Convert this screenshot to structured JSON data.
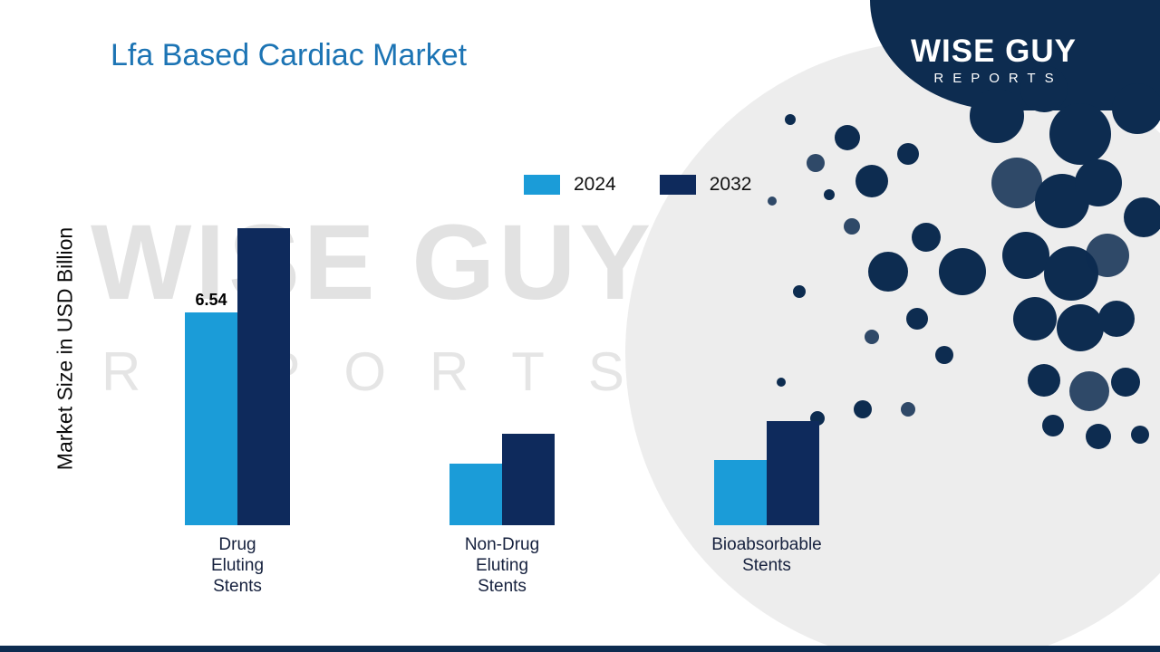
{
  "title": "Lfa Based Cardiac Market",
  "ylabel": "Market Size in USD Billion",
  "logo": {
    "brand_line1": "WISE GUY",
    "brand_line2": "REPORTS"
  },
  "watermark": {
    "line1": "WISE GUY",
    "line2": "REPORTS"
  },
  "colors": {
    "accent_blue": "#1b9cd8",
    "navy": "#0e2a5c",
    "brand_navy": "#0d2c50",
    "title_blue": "#1c74b4",
    "circle_gray": "#ededed"
  },
  "chart_data": {
    "type": "bar",
    "title": "Lfa Based Cardiac Market",
    "xlabel": "",
    "ylabel": "Market Size in USD Billion",
    "categories": [
      "Drug Eluting Stents",
      "Non-Drug Eluting Stents",
      "Bioabsorbable Stents"
    ],
    "category_label_lines": [
      [
        "Drug",
        "Eluting",
        "Stents"
      ],
      [
        "Non-Drug",
        "Eluting",
        "Stents"
      ],
      [
        "Bioabsorbable",
        "Stents"
      ]
    ],
    "series": [
      {
        "name": "2024",
        "color": "#1b9cd8",
        "values": [
          6.54,
          1.9,
          2.0
        ],
        "data_labels": [
          "6.54",
          "",
          ""
        ]
      },
      {
        "name": "2032",
        "color": "#0e2a5c",
        "values": [
          9.1,
          2.8,
          3.2
        ],
        "data_labels": [
          "",
          "",
          ""
        ]
      }
    ],
    "ylim": [
      0,
      10
    ],
    "grid": false,
    "legend_position": "top-center"
  }
}
